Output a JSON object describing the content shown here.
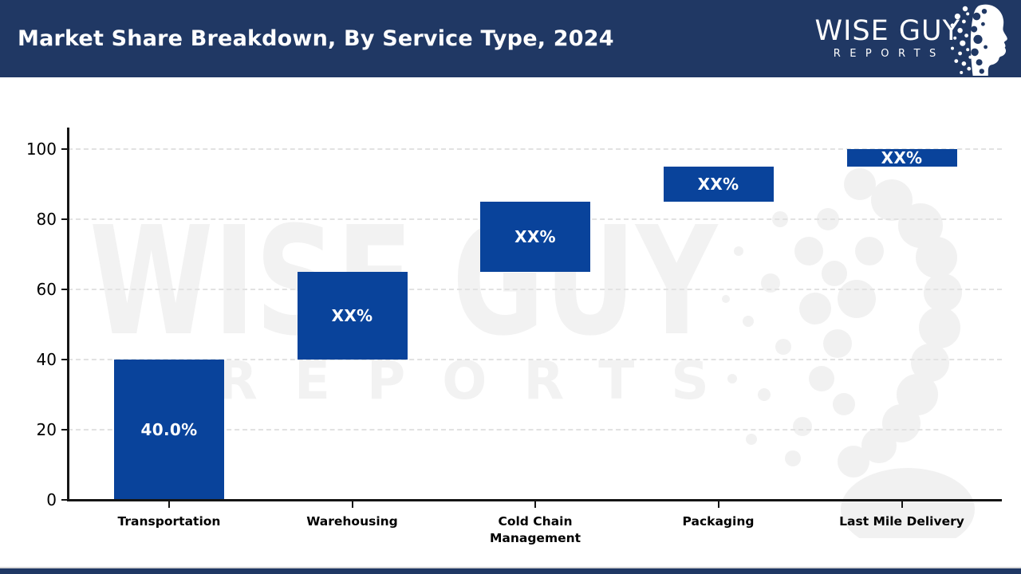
{
  "header": {
    "title": "Market Share Breakdown, By Service Type, 2024",
    "logo": {
      "line1": "WISE GUY",
      "line2": "REPORTS"
    }
  },
  "watermark": {
    "line1": "WISE GUY",
    "line2": "REPORTS"
  },
  "chart_data": {
    "type": "bar",
    "subtype": "waterfall",
    "title": "Market Share Breakdown, By Service Type, 2024",
    "categories": [
      "Transportation",
      "Warehousing",
      "Cold Chain\nManagement",
      "Packaging",
      "Last Mile Delivery"
    ],
    "segments": [
      {
        "category": "Transportation",
        "start": 0,
        "end": 40,
        "value_pct": 40,
        "label": "40.0%"
      },
      {
        "category": "Warehousing",
        "start": 40,
        "end": 65,
        "value_pct": 25,
        "label": "XX%"
      },
      {
        "category": "Cold Chain Management",
        "start": 65,
        "end": 85,
        "value_pct": 20,
        "label": "XX%"
      },
      {
        "category": "Packaging",
        "start": 85,
        "end": 95,
        "value_pct": 10,
        "label": "XX%"
      },
      {
        "category": "Last Mile Delivery",
        "start": 95,
        "end": 100,
        "value_pct": 5,
        "label": "XX%"
      }
    ],
    "xlabel": "",
    "ylabel": "",
    "ylim": [
      0,
      106
    ],
    "yticks": [
      0,
      20,
      40,
      60,
      80,
      100
    ],
    "grid": "horizontal-dashed",
    "legend": "none",
    "bar_color": "#09439b",
    "bar_label_color": "#ffffff"
  },
  "colors": {
    "header_bg": "#203864",
    "footer_bg": "#203864",
    "bar": "#09439b",
    "grid": "#e2e2e2",
    "axis": "#151515",
    "watermark": "#f2f2f2",
    "border": "#d9d9d9",
    "title_text": "#ffffff"
  }
}
